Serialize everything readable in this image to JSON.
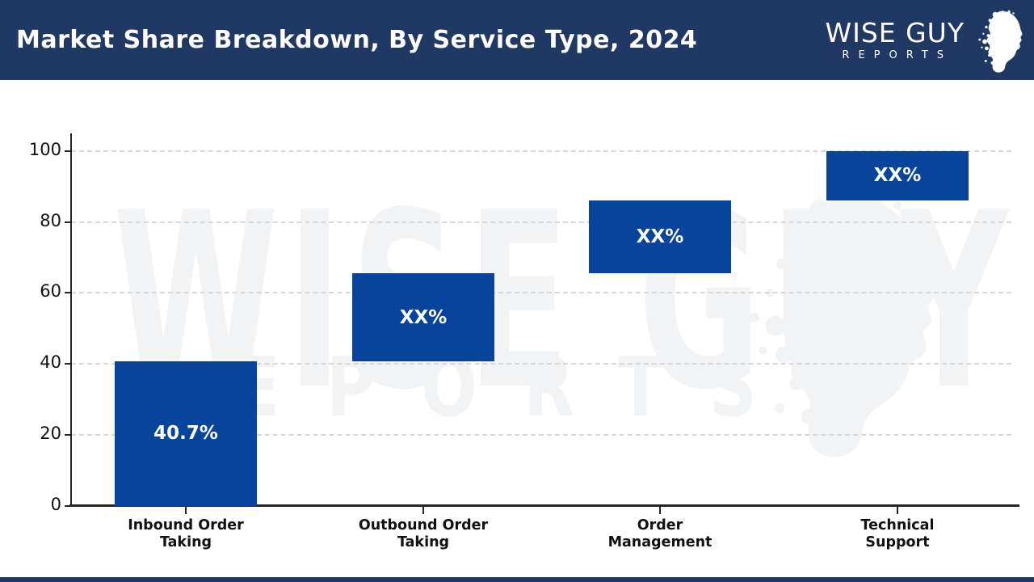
{
  "header": {
    "title": "Market Share Breakdown, By Service Type, 2024",
    "logo": {
      "line1": "WISE GUY",
      "line2": "REPORTS"
    }
  },
  "watermark": {
    "line1": "WISE GUY",
    "line2": "REPORTS"
  },
  "colors": {
    "header_bg": "#1f3864",
    "bar": "#08449b",
    "grid": "#d9d9d9",
    "watermark": "#f2f3f5",
    "axis": "#262626",
    "bar_label_text": "#ffffff"
  },
  "chart_data": {
    "type": "bar",
    "subtype": "waterfall",
    "title": "Market Share Breakdown, By Service Type, 2024",
    "categories": [
      "Inbound Order Taking",
      "Outbound Order Taking",
      "Order Management",
      "Technical Support"
    ],
    "bars": [
      {
        "category": "Inbound Order Taking",
        "start": 0,
        "end": 40.7,
        "label": "40.7%"
      },
      {
        "category": "Outbound Order Taking",
        "start": 40.7,
        "end": 65.5,
        "label": "XX%"
      },
      {
        "category": "Order Management",
        "start": 65.5,
        "end": 86,
        "label": "XX%"
      },
      {
        "category": "Technical Support",
        "start": 86,
        "end": 100,
        "label": "XX%"
      }
    ],
    "yticks": [
      0,
      20,
      40,
      60,
      80,
      100
    ],
    "ylim": [
      0,
      105
    ],
    "xlabel": "",
    "ylabel": "",
    "grid": "horizontal-dashed",
    "legend": "none",
    "bar_color": "#08449b"
  }
}
